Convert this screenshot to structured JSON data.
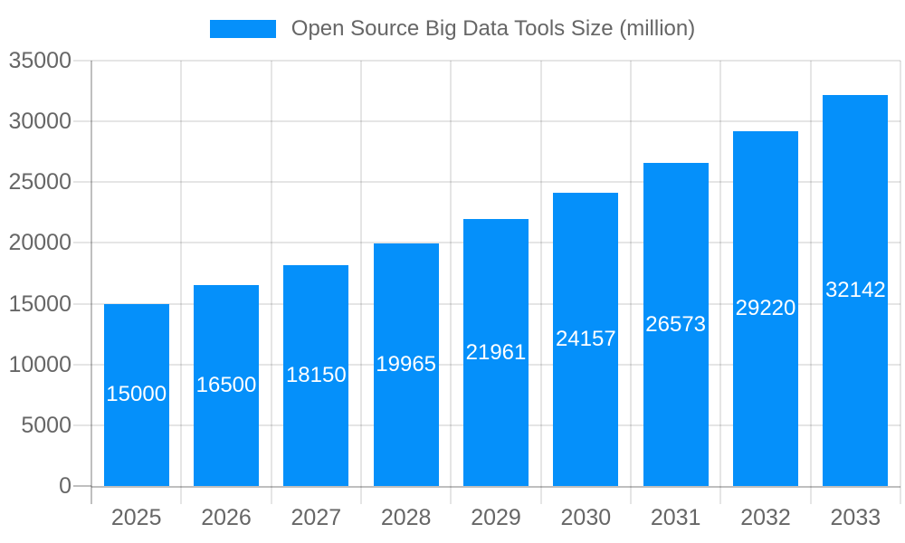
{
  "chart_data": {
    "type": "bar",
    "title": "Open Source Big Data Tools Size (million)",
    "legend": {
      "label": "Open Source Big Data Tools Size (million)",
      "position": "top"
    },
    "categories": [
      "2025",
      "2026",
      "2027",
      "2028",
      "2029",
      "2030",
      "2031",
      "2032",
      "2033"
    ],
    "series": [
      {
        "name": "Open Source Big Data Tools Size (million)",
        "values": [
          15000,
          16500,
          18150,
          19965,
          21961,
          24157,
          26573,
          29220,
          32142
        ]
      }
    ],
    "bar_value_labels": [
      "15000",
      "16500",
      "18150",
      "19965",
      "21961",
      "24157",
      "26573",
      "29220",
      "32142"
    ],
    "xlabel": "",
    "ylabel": "",
    "ylim": [
      0,
      35000
    ],
    "yticks": [
      0,
      5000,
      10000,
      15000,
      20000,
      25000,
      30000,
      35000
    ],
    "grid": true,
    "style": {
      "bar_color": "#0590FA",
      "bar_label_color": "#FFFFFF",
      "axis_text_color": "#666666",
      "grid_color": "rgba(0,0,0,0.1)",
      "zero_line_color": "rgba(0,0,0,0.25)",
      "background": "#FFFFFF"
    }
  }
}
